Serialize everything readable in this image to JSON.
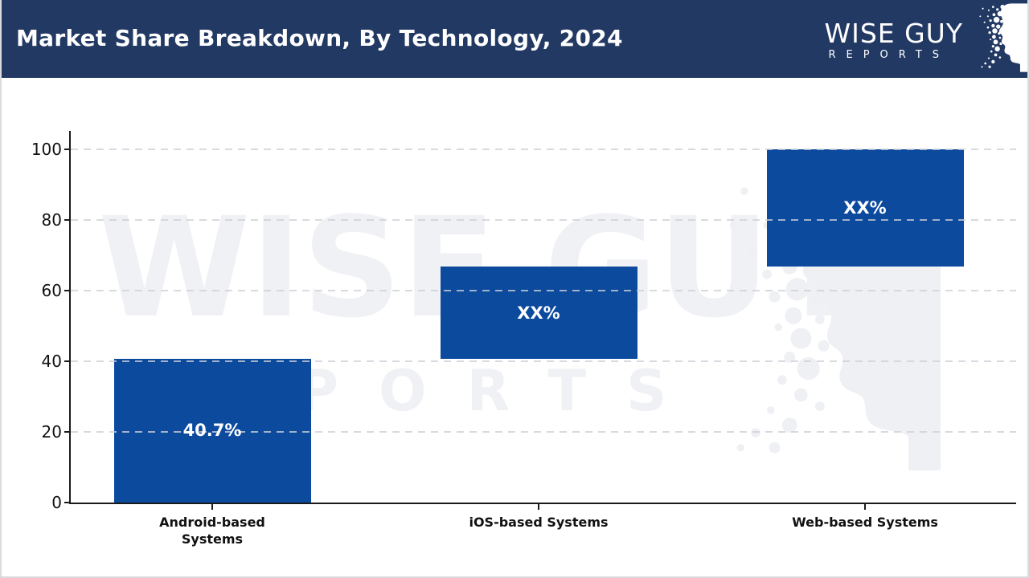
{
  "header": {
    "title": "Market Share Breakdown, By Technology, 2024",
    "logo": {
      "line1": "WISE GUY",
      "line2": "REPORTS"
    }
  },
  "watermark": {
    "line1": "WISE GUY",
    "line2": "REPORTS"
  },
  "chart_data": {
    "type": "bar",
    "subtype": "floating-segment-waterfall",
    "title": "Market Share Breakdown, By Technology, 2024",
    "categories": [
      "Android-based Systems",
      "iOS-based Systems",
      "Web-based Systems"
    ],
    "segments": [
      {
        "category": "Android-based Systems",
        "start": 0,
        "end": 40.7,
        "label": "40.7%"
      },
      {
        "category": "iOS-based Systems",
        "start": 40.7,
        "end": 66.8,
        "label": "XX%"
      },
      {
        "category": "Web-based Systems",
        "start": 66.8,
        "end": 100,
        "label": "XX%"
      }
    ],
    "xlabel": "",
    "ylabel": "",
    "ylim": [
      0,
      105
    ],
    "yticks": [
      0,
      20,
      40,
      60,
      80,
      100
    ],
    "grid": "horizontal-dashed-over-bars",
    "legend": "none",
    "bar_color": "#0c4a9e",
    "bar_label_color": "#ffffff"
  },
  "colors": {
    "header_bg": "#223963",
    "bar_blue": "#0c4a9e",
    "watermark_gray": "#eef0f3",
    "axis": "#1a1a1a",
    "gridline": "#cdd0d6",
    "page_border": "#d9dbdd"
  }
}
